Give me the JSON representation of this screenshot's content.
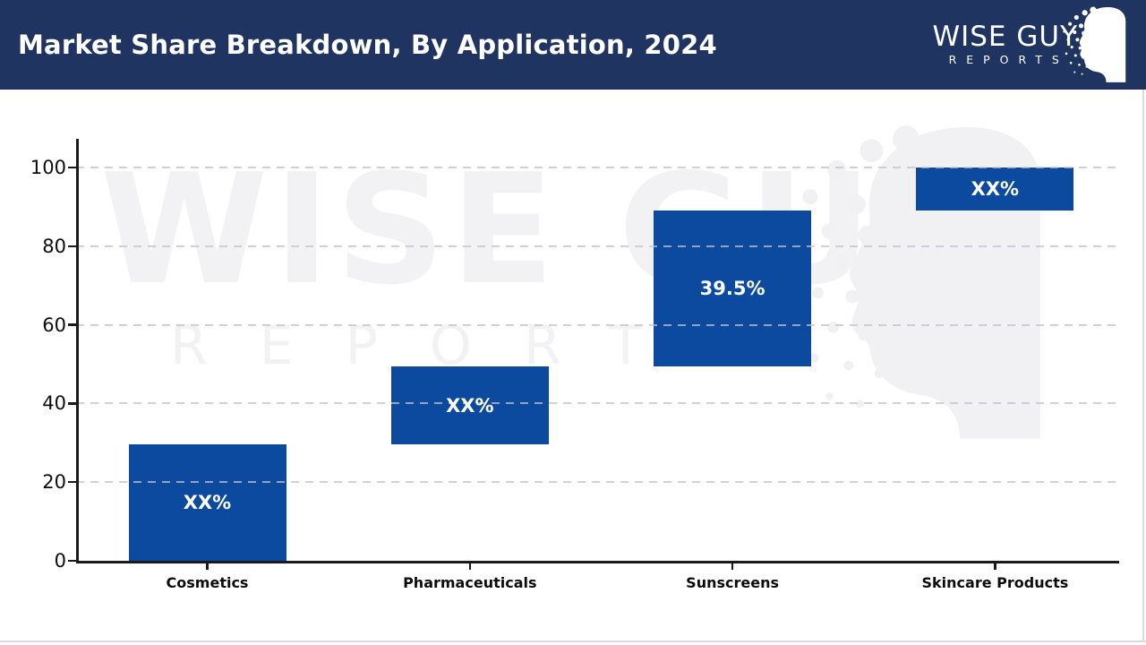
{
  "header": {
    "title": "Market Share Breakdown, By Application, 2024",
    "background_color": "#1f3460",
    "logo": {
      "line1": "WISE GUY",
      "line2": "REPORTS"
    }
  },
  "watermark": {
    "line1": "WISE GUY",
    "line2": "REPORTS",
    "color": "#f2f2f5"
  },
  "chart_data": {
    "type": "bar",
    "subtype": "waterfall",
    "title": "Market Share Breakdown, By Application, 2024",
    "categories": [
      "Cosmetics",
      "Pharmaceuticals",
      "Sunscreens",
      "Skincare Products"
    ],
    "segments": [
      {
        "category": "Cosmetics",
        "start": 0,
        "end": 29.5,
        "label": "XX%"
      },
      {
        "category": "Pharmaceuticals",
        "start": 29.5,
        "end": 49.5,
        "label": "XX%"
      },
      {
        "category": "Sunscreens",
        "start": 49.5,
        "end": 89,
        "label": "39.5%"
      },
      {
        "category": "Skincare Products",
        "start": 89,
        "end": 100,
        "label": "XX%"
      }
    ],
    "yticks": [
      0,
      20,
      40,
      60,
      80,
      100
    ],
    "ylim": [
      0,
      107
    ],
    "xlabel": "",
    "ylabel": "",
    "grid": "horizontal-dashed",
    "legend": "none",
    "bar_color": "#0b4a9f",
    "bar_label_color": "#ffffff",
    "axis_color": "#1a1a1a",
    "grid_color": "#c9c9cc"
  }
}
